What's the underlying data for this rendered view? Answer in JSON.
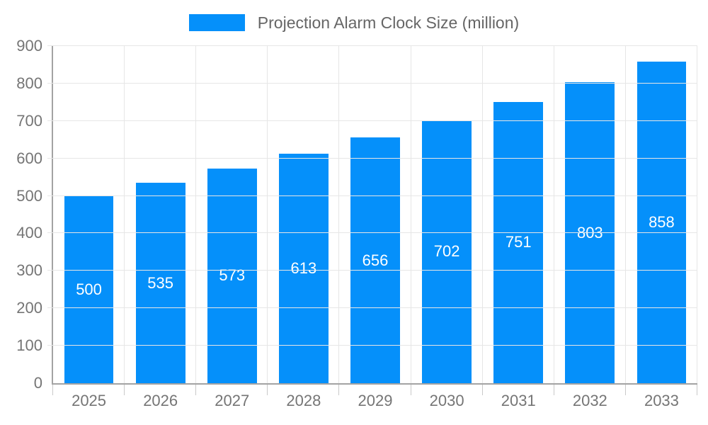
{
  "chart_data": {
    "type": "bar",
    "title": "Projection Alarm Clock Size (million)",
    "categories": [
      "2025",
      "2026",
      "2027",
      "2028",
      "2029",
      "2030",
      "2031",
      "2032",
      "2033"
    ],
    "values": [
      500,
      535,
      573,
      613,
      656,
      702,
      751,
      803,
      858
    ],
    "xlabel": "",
    "ylabel": "",
    "ylim": [
      0,
      900
    ],
    "ytick_step": 100,
    "yticks": [
      "0",
      "100",
      "200",
      "300",
      "400",
      "500",
      "600",
      "700",
      "800",
      "900"
    ],
    "grid": true,
    "legend_position": "top",
    "value_labels": "centered-inside-bars",
    "colors": {
      "bar": "#0590FA",
      "grid": "#E6E6E6",
      "axis": "#A3A3A3",
      "tick": "#C9C9C9",
      "axis_text": "#757575",
      "legend_text": "#666666",
      "value_text": "#FFFFFF",
      "background": "#FFFFFF"
    }
  }
}
